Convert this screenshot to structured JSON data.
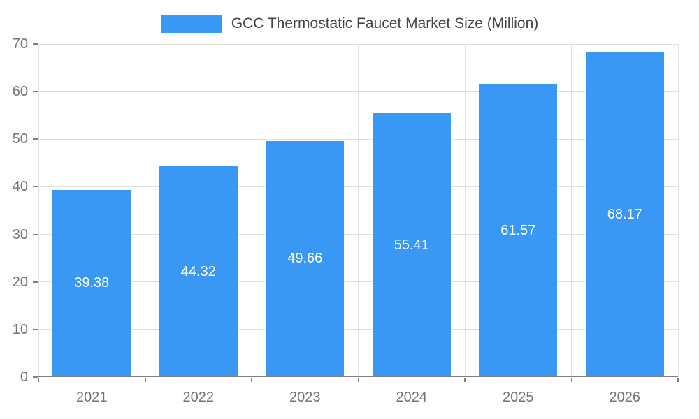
{
  "colors": {
    "bar": "#3898F4",
    "grid": "#E0E0E0",
    "axis": "#7F7F7F",
    "tick_text": "#757575",
    "title_text": "#454545",
    "value_text": "#FFFFFF",
    "background": "#FFFFFF"
  },
  "legend": {
    "label": "GCC Thermostatic Faucet Market Size (Million)"
  },
  "chart_data": {
    "type": "bar",
    "title": "GCC Thermostatic Faucet Market Size (Million)",
    "categories": [
      "2021",
      "2022",
      "2023",
      "2024",
      "2025",
      "2026"
    ],
    "values": [
      39.38,
      44.32,
      49.66,
      55.41,
      61.57,
      68.17
    ],
    "value_labels": [
      "39.38",
      "44.32",
      "49.66",
      "55.41",
      "61.57",
      "68.17"
    ],
    "xlabel": "",
    "ylabel": "",
    "ylim": [
      0,
      70
    ],
    "yticks": [
      0,
      10,
      20,
      30,
      40,
      50,
      60,
      70
    ],
    "grid": true,
    "legend_position": "top"
  }
}
